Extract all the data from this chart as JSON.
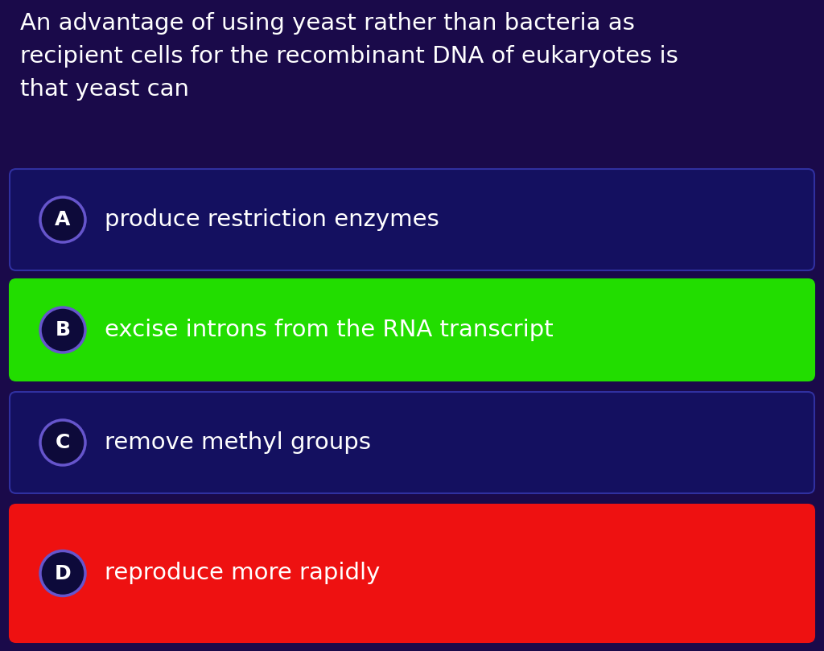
{
  "background_color": "#1a0a4a",
  "question_text": "An advantage of using yeast rather than bacteria as\nrecipient cells for the recombinant DNA of eukaryotes is\nthat yeast can",
  "question_color": "#ffffff",
  "question_fontsize": 21,
  "options": [
    {
      "label": "A",
      "text": "produce restriction enzymes",
      "box_color": "#141060",
      "box_border": "#3030a0",
      "text_color": "#ffffff",
      "label_bg": "#0d0a3a",
      "label_border": "#6655cc",
      "label_text_color": "#ffffff"
    },
    {
      "label": "B",
      "text": "excise introns from the RNA transcript",
      "box_color": "#22dd00",
      "box_border": "#22dd00",
      "text_color": "#ffffff",
      "label_bg": "#0d0a3a",
      "label_border": "#6655cc",
      "label_text_color": "#ffffff"
    },
    {
      "label": "C",
      "text": "remove methyl groups",
      "box_color": "#141060",
      "box_border": "#3030a0",
      "text_color": "#ffffff",
      "label_bg": "#0d0a3a",
      "label_border": "#6655cc",
      "label_text_color": "#ffffff"
    },
    {
      "label": "D",
      "text": "reproduce more rapidly",
      "box_color": "#ee1111",
      "box_border": "#ee1111",
      "text_color": "#ffffff",
      "label_bg": "#0d0a3a",
      "label_border": "#6655cc",
      "label_text_color": "#ffffff"
    }
  ],
  "option_fontsize": 21,
  "label_fontsize": 18,
  "fig_width": 10.24,
  "fig_height": 8.09,
  "dpi": 100
}
